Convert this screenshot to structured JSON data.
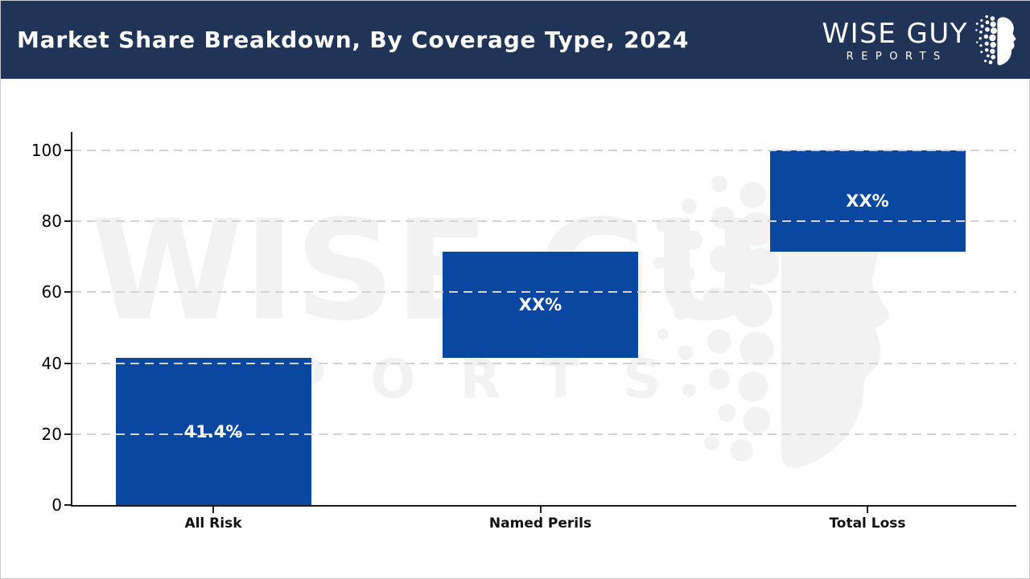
{
  "header": {
    "title": "Market Share Breakdown, By Coverage Type, 2024",
    "logo": {
      "line1": "WISE GUY",
      "line2": "REPORTS"
    }
  },
  "watermark": {
    "line1": "WISE GUY",
    "line2": "REPORTS"
  },
  "colors": {
    "header_bg": "#203457",
    "bar_blue": "#0a47a1",
    "grid_gray": "#d4d4d4",
    "axis_black": "#1c1c1c",
    "watermark_gray": "#f2f2f2"
  },
  "chart_data": {
    "type": "bar",
    "variant": "floating-stacked-waterfall",
    "title": "Market Share Breakdown, By Coverage Type, 2024",
    "categories": [
      "All Risk",
      "Named Perils",
      "Total Loss"
    ],
    "segments": [
      {
        "category": "All Risk",
        "start": 0,
        "end": 41.4,
        "value": 41.4,
        "label": "41.4%"
      },
      {
        "category": "Named Perils",
        "start": 41.4,
        "end": 71.5,
        "value": 30.1,
        "label": "XX%"
      },
      {
        "category": "Total Loss",
        "start": 71.5,
        "end": 100,
        "value": 28.5,
        "label": "XX%"
      }
    ],
    "ylim": [
      0,
      100
    ],
    "yticks": [
      0,
      20,
      40,
      60,
      80,
      100
    ],
    "grid": "dashed-horizontal",
    "legend": "none",
    "bar_color": "#0a47a1",
    "bar_label_color": "#ffffff"
  }
}
